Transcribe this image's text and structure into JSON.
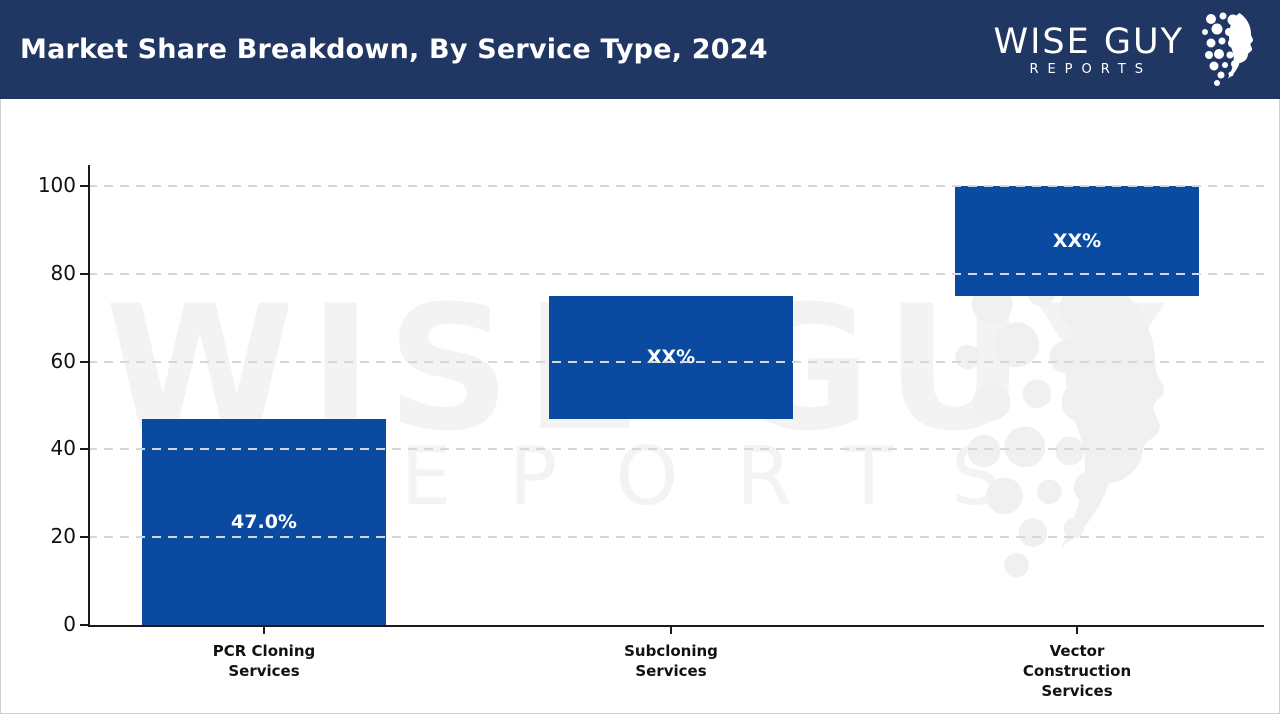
{
  "header": {
    "title": "Market Share Breakdown, By Service Type, 2024",
    "logo": {
      "line1": "WISE GUY",
      "line2": "REPORTS"
    }
  },
  "watermark": {
    "line1": "WISE GUY",
    "line2": "REPORTS"
  },
  "chart_data": {
    "type": "bar",
    "subtype": "waterfall",
    "title": "Market Share Breakdown, By Service Type, 2024",
    "categories": [
      "PCR Cloning Services",
      "Subcloning Services",
      "Vector Construction Services"
    ],
    "category_label_lines": [
      [
        "PCR Cloning",
        "Services"
      ],
      [
        "Subcloning",
        "Services"
      ],
      [
        "Vector",
        "Construction",
        "Services"
      ]
    ],
    "series": [
      {
        "name": "Market Share",
        "segment_starts": [
          0,
          47,
          75
        ],
        "segment_ends": [
          47,
          75,
          100
        ]
      }
    ],
    "bar_labels": [
      "47.0%",
      "XX%",
      "XX%"
    ],
    "yticks": [
      0,
      20,
      40,
      60,
      80,
      100
    ],
    "ylim": [
      0,
      105
    ],
    "xlabel": "",
    "ylabel": "",
    "grid": "horizontal-dashed-over-bars",
    "legend": "none",
    "colors": {
      "bar": "#0b4aa1",
      "bar_label": "#ffffff",
      "header_bg": "#203764",
      "gridline": "#d7d7d7",
      "axis": "#1a1a1a",
      "watermark": "#f3f3f3"
    }
  }
}
